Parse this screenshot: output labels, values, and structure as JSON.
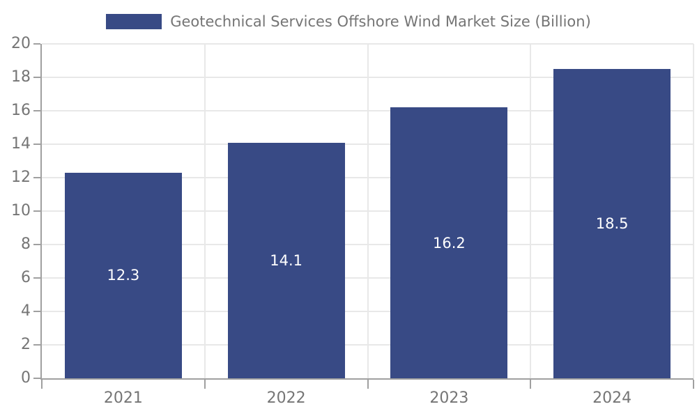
{
  "legend": {
    "label": "Geotechnical Services Offshore Wind Market Size (Billion)"
  },
  "chart_data": {
    "type": "bar",
    "title": "Geotechnical Services Offshore Wind Market Size (Billion)",
    "categories": [
      "2021",
      "2022",
      "2023",
      "2024"
    ],
    "values": [
      12.3,
      14.1,
      16.2,
      18.5
    ],
    "data_labels": [
      "12.3",
      "14.1",
      "16.2",
      "18.5"
    ],
    "xlabel": "",
    "ylabel": "",
    "ylim": [
      0,
      20
    ],
    "yticks": [
      0,
      2,
      4,
      6,
      8,
      10,
      12,
      14,
      16,
      18,
      20
    ],
    "grid": true,
    "legend_position": "top-center",
    "colors": {
      "bar": "#384a85",
      "grid": "#e8e8e8",
      "axis": "#a0a0a0",
      "tick_label": "#757575",
      "legend_label": "#757575",
      "data_label": "#ffffff",
      "background": "#ffffff"
    }
  }
}
